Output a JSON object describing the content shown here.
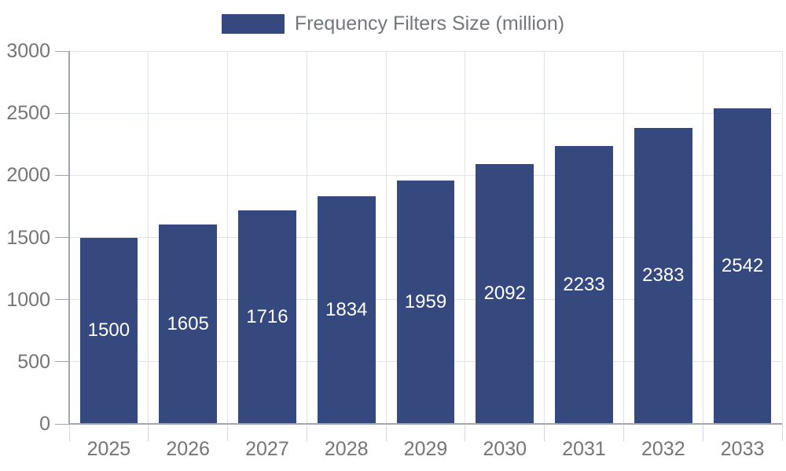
{
  "legend": {
    "label": "Frequency Filters Size (million)"
  },
  "colors": {
    "bar": "#35497f",
    "grid": "#e0e3e8",
    "axis": "#a2a5ab",
    "axis_text": "#757575",
    "legend_text": "#73777d",
    "value_text": "#ffffff"
  },
  "chart_data": {
    "type": "bar",
    "title": "Frequency Filters Size (million)",
    "series_name": "Frequency Filters Size (million)",
    "categories": [
      "2025",
      "2026",
      "2027",
      "2028",
      "2029",
      "2030",
      "2031",
      "2032",
      "2033"
    ],
    "values": [
      1500,
      1605,
      1716,
      1834,
      1959,
      2092,
      2233,
      2383,
      2542
    ],
    "xlabel": "",
    "ylabel": "",
    "ylim": [
      0,
      3000
    ],
    "y_ticks": [
      0,
      500,
      1000,
      1500,
      2000,
      2500,
      3000
    ],
    "grid": true,
    "legend_position": "top-center",
    "value_label_position": "inside-center",
    "bar_width_fraction": 0.73
  }
}
